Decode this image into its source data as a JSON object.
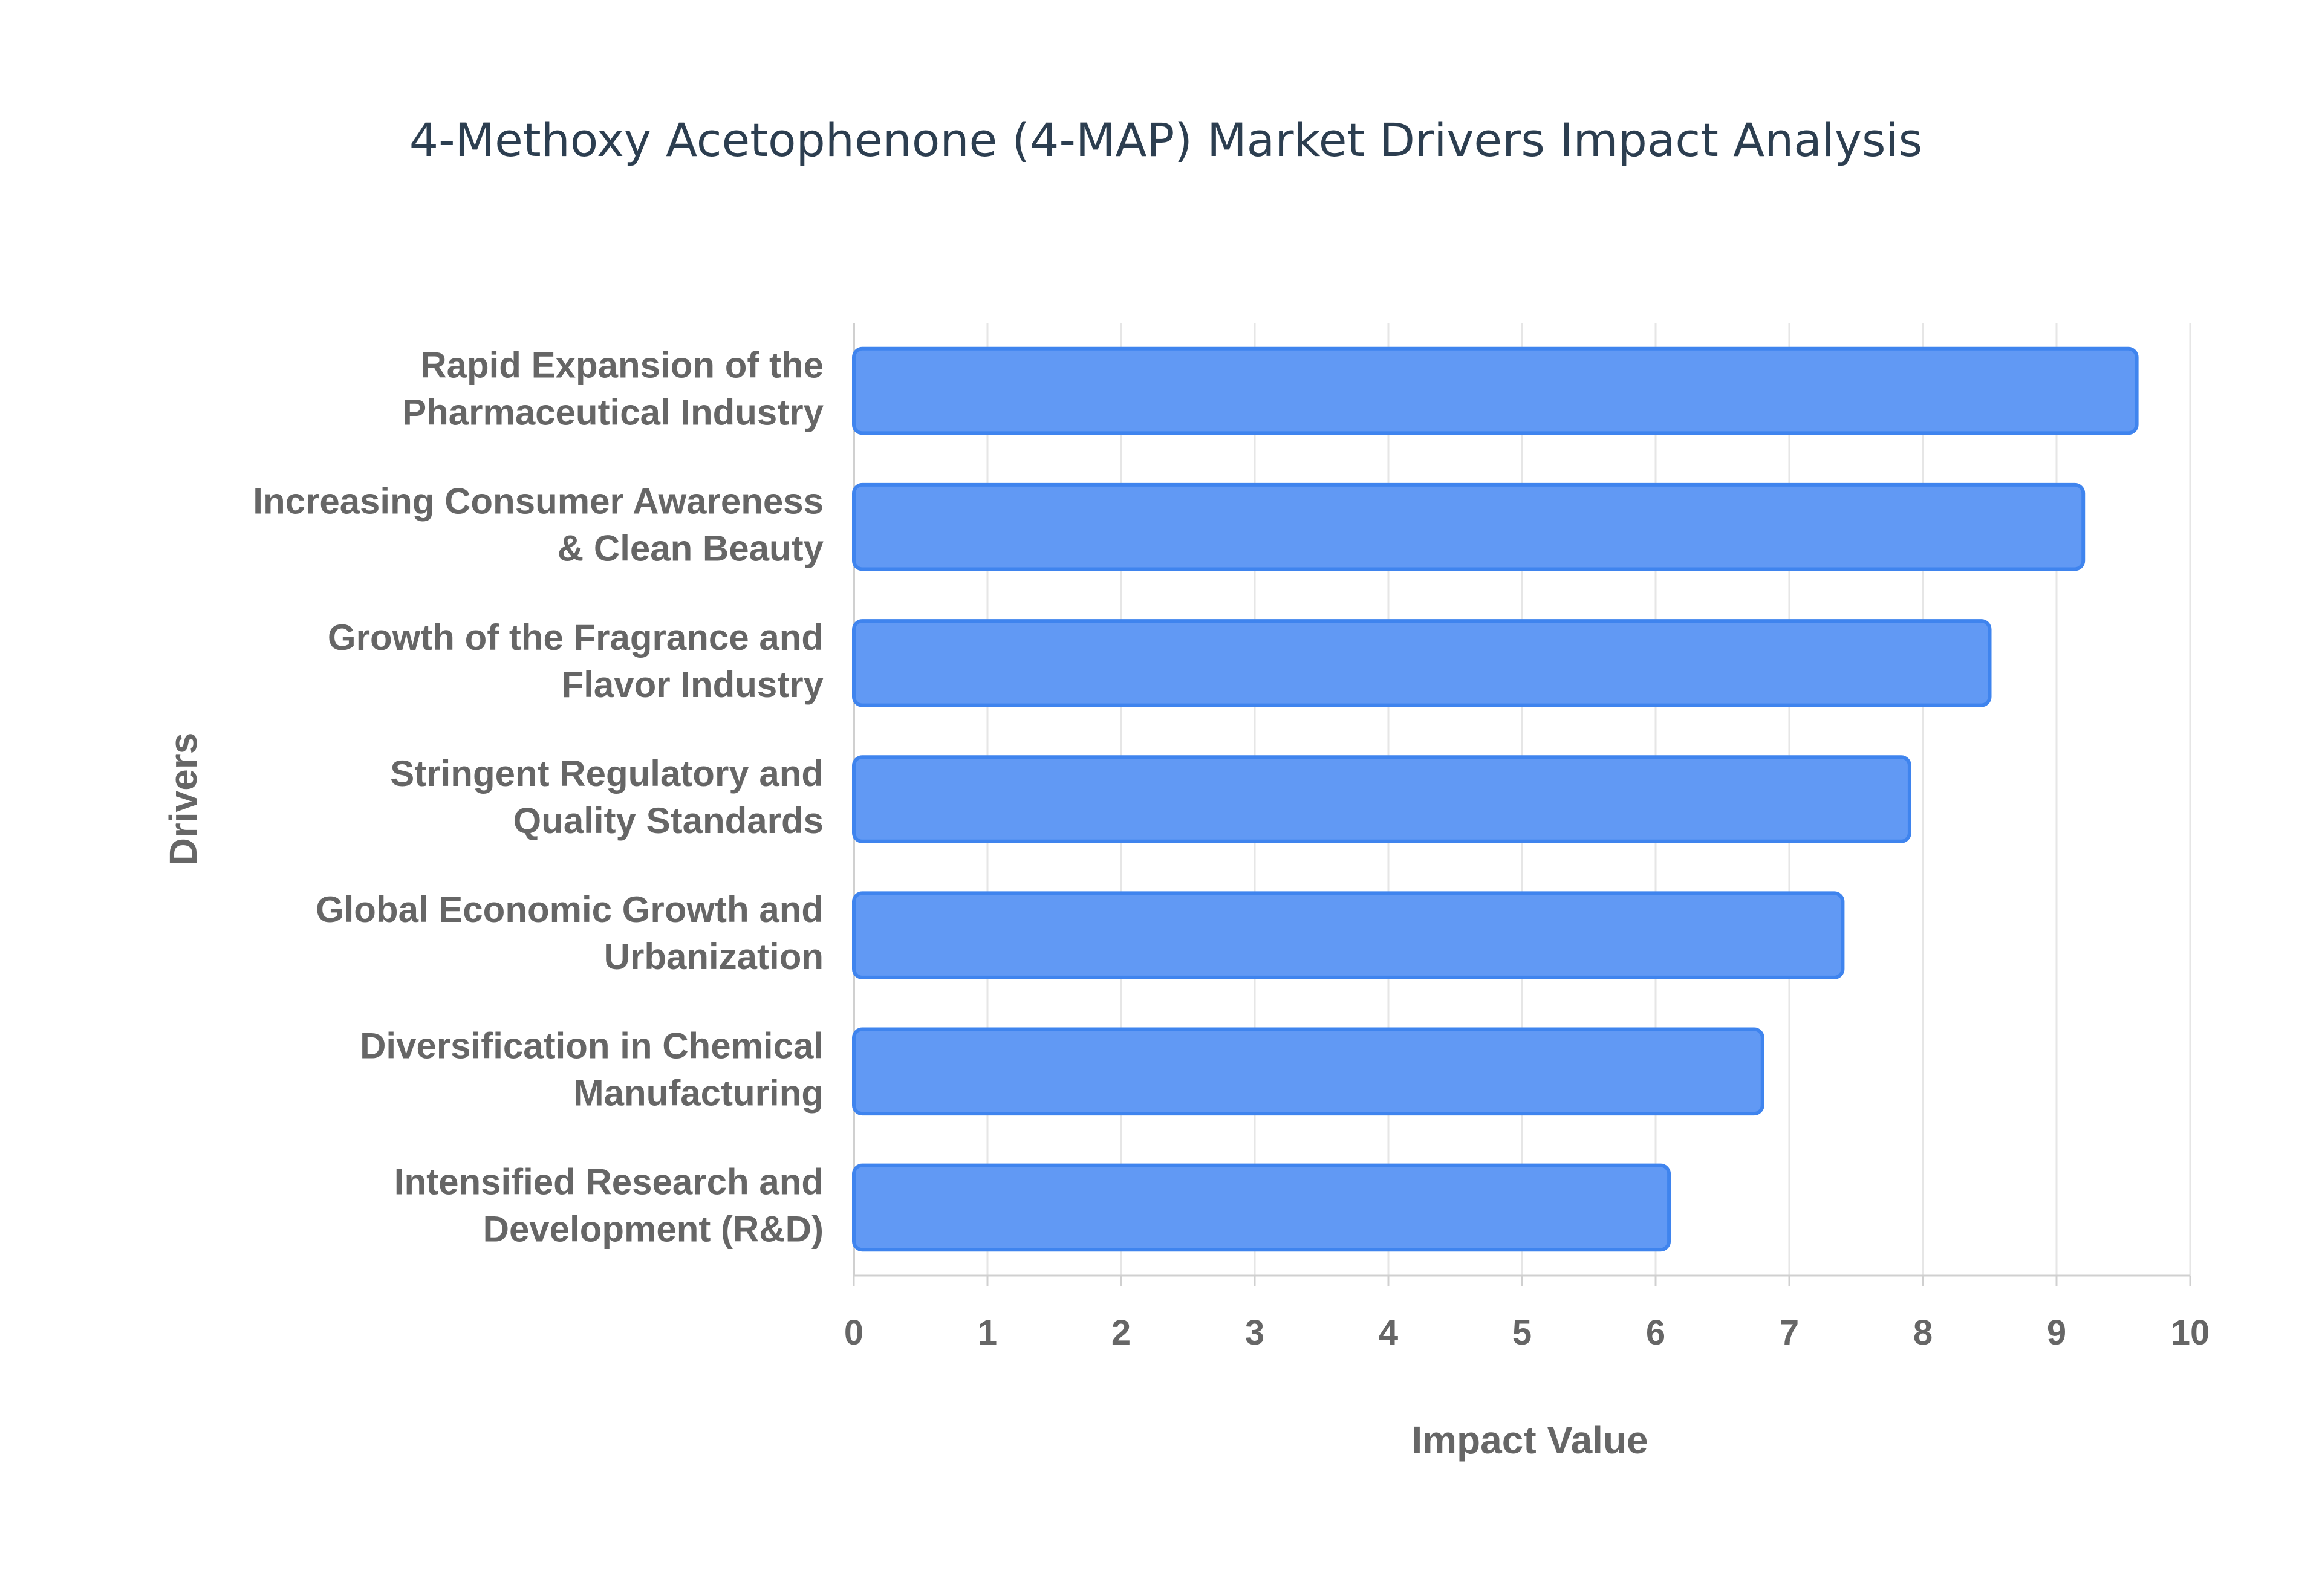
{
  "chart_data": {
    "type": "bar",
    "orientation": "horizontal",
    "title": "4-Methoxy Acetophenone (4-MAP) Market Drivers Impact Analysis",
    "xlabel": "Impact Value",
    "ylabel": "Drivers",
    "xlim": [
      0,
      10
    ],
    "xticks": [
      "0",
      "1",
      "2",
      "3",
      "4",
      "5",
      "6",
      "7",
      "8",
      "9",
      "10"
    ],
    "grid": true,
    "categories": [
      [
        "Rapid Expansion of the",
        "Pharmaceutical Industry"
      ],
      [
        "Increasing Consumer Awareness",
        "& Clean Beauty"
      ],
      [
        "Growth of the Fragrance and",
        "Flavor Industry"
      ],
      [
        "Stringent Regulatory and",
        "Quality Standards"
      ],
      [
        "Global Economic Growth and",
        "Urbanization"
      ],
      [
        "Diversification in Chemical",
        "Manufacturing"
      ],
      [
        "Intensified Research and",
        "Development (R&D)"
      ]
    ],
    "values": [
      9.6,
      9.2,
      8.5,
      7.9,
      7.4,
      6.8,
      6.1
    ],
    "colors": {
      "bar_fill": "#6199f4",
      "bar_border": "#3f84ee",
      "grid": "#e6e6e6",
      "text": "#666666",
      "title": "#2c3e50"
    }
  }
}
